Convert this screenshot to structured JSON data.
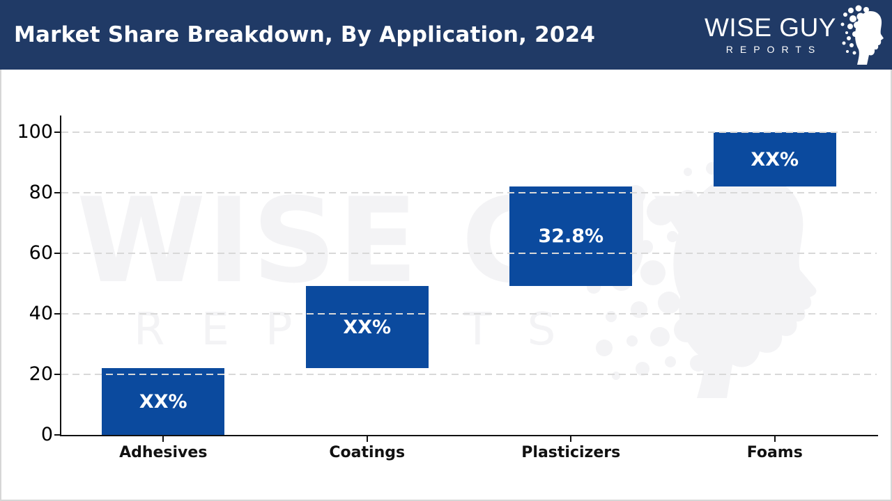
{
  "header": {
    "title": "Market Share Breakdown, By Application, 2024",
    "logo": {
      "line1": "WISE GUY",
      "line2": "REPORTS"
    }
  },
  "watermark": {
    "line1": "WISE GUY",
    "line2": "REPORTS"
  },
  "colors": {
    "header_bg": "#203a66",
    "bar": "#0b4a9e",
    "bar_label": "#ffffff",
    "grid": "#d8d8d8",
    "axis": "#111111",
    "watermark": "#f3f3f5",
    "title_text": "#ffffff"
  },
  "chart_data": {
    "type": "bar",
    "subtype": "floating-waterfall",
    "title": "Market Share Breakdown, By Application, 2024",
    "categories": [
      "Adhesives",
      "Coatings",
      "Plasticizers",
      "Foams"
    ],
    "segments": [
      {
        "category": "Adhesives",
        "start": 0,
        "end": 22,
        "label": "XX%"
      },
      {
        "category": "Coatings",
        "start": 22,
        "end": 49.2,
        "label": "XX%"
      },
      {
        "category": "Plasticizers",
        "start": 49.2,
        "end": 82,
        "label": "32.8%"
      },
      {
        "category": "Foams",
        "start": 82,
        "end": 100,
        "label": "XX%"
      }
    ],
    "yticks": [
      0,
      20,
      40,
      60,
      80,
      100
    ],
    "ylim": [
      0,
      100
    ],
    "xlabel": "",
    "ylabel": "",
    "grid": "horizontal-dashed",
    "legend": null
  }
}
